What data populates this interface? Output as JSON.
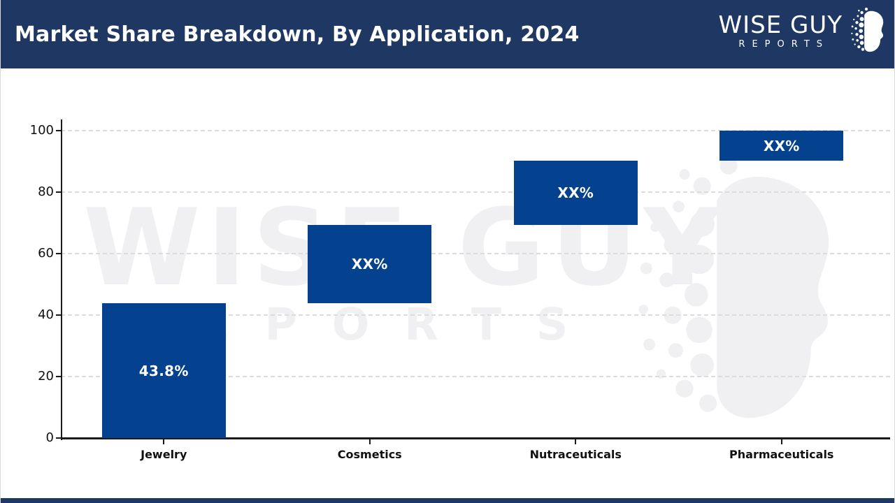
{
  "header": {
    "title": "Market Share Breakdown, By Application, 2024",
    "logo": {
      "line1": "WISE GUY",
      "line2": "REPORTS"
    }
  },
  "watermark": {
    "line1": "WISE GUY",
    "line2": "REPORTS"
  },
  "theme": {
    "header_bg": "#1f3863",
    "bar_color": "#04418f",
    "grid_color": "#dcdcdc",
    "axis_color": "#1a1a1a",
    "watermark_color": "#f0f0f2"
  },
  "chart_data": {
    "type": "bar",
    "subtype": "waterfall",
    "title": "Market Share Breakdown, By Application, 2024",
    "categories": [
      "Jewelry",
      "Cosmetics",
      "Nutraceuticals",
      "Pharmaceuticals"
    ],
    "series": [
      {
        "name": "Jewelry",
        "start": 0,
        "end": 43.8,
        "label": "43.8%"
      },
      {
        "name": "Cosmetics",
        "start": 43.8,
        "end": 69.4,
        "label": "XX%"
      },
      {
        "name": "Nutraceuticals",
        "start": 69.4,
        "end": 90.2,
        "label": "XX%"
      },
      {
        "name": "Pharmaceuticals",
        "start": 90.2,
        "end": 100,
        "label": "XX%"
      }
    ],
    "yticks": [
      0,
      20,
      40,
      60,
      80,
      100
    ],
    "ylim": [
      0,
      100
    ],
    "xlabel": "",
    "ylabel": "",
    "grid": "horizontal-dashed",
    "legend": "none",
    "bar_width_fraction": 0.6
  }
}
